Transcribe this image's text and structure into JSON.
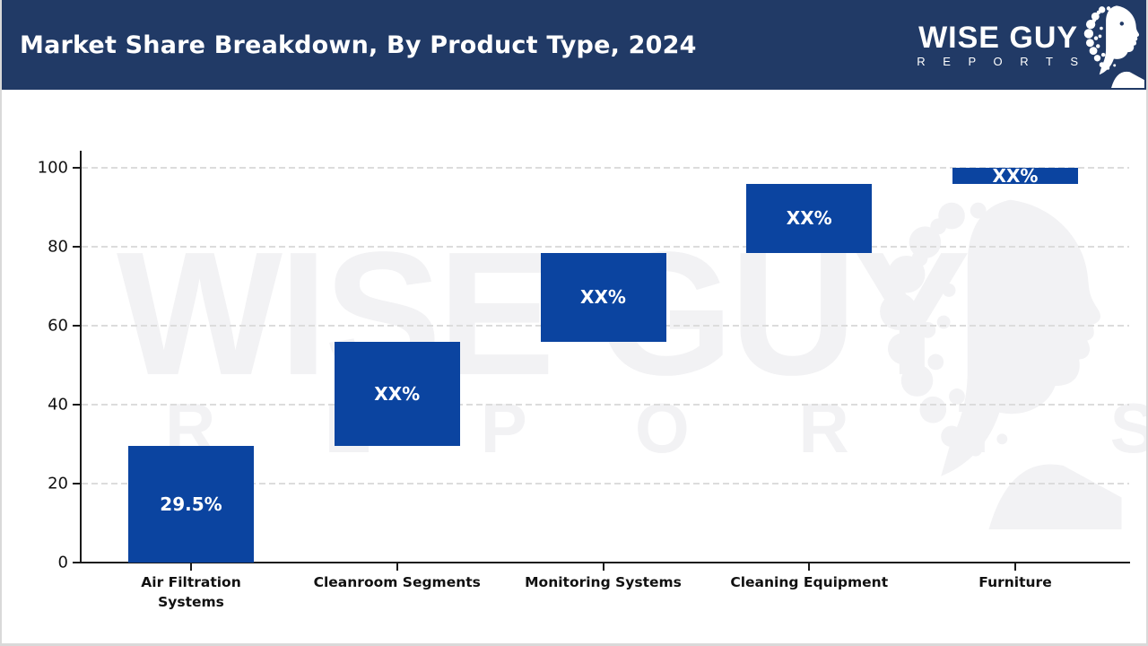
{
  "header": {
    "title": "Market Share Breakdown, By Product Type, 2024",
    "brand": {
      "wordmark": "WISE GUY",
      "sub_wordmark": "R E P O R T S"
    }
  },
  "watermark": {
    "wordmark": "WISE GUY",
    "sub_wordmark": "R E P O R T S"
  },
  "colors": {
    "header_bg": "#213A66",
    "bar": "#0B44A0",
    "bar_label": "#FFFFFF",
    "overflow_label": "#1A1A1A",
    "axis": "#1A1A1A",
    "gridline": "#DCDCDC",
    "watermark": "#F2F2F4",
    "category_label": "#111111"
  },
  "chart_data": {
    "type": "bar",
    "subtype": "waterfall-stepped-market-share",
    "title": "Market Share Breakdown, By Product Type, 2024",
    "xlabel": "",
    "ylabel": "",
    "ylim": [
      0,
      100
    ],
    "yticks": [
      0,
      20,
      40,
      60,
      80,
      100
    ],
    "grid": "horizontal-dashed",
    "legend": "none",
    "categories": [
      "Air Filtration Systems",
      "Cleanroom Segments",
      "Monitoring Systems",
      "Cleaning Equipment",
      "Furniture"
    ],
    "bars": [
      {
        "category": "Air Filtration Systems",
        "category_lines": [
          "Air Filtration",
          "Systems"
        ],
        "start": 0,
        "end": 29.5,
        "label": "29.5%"
      },
      {
        "category": "Cleanroom Segments",
        "category_lines": [
          "Cleanroom Segments"
        ],
        "start": 29.5,
        "end": 56,
        "label": "XX%"
      },
      {
        "category": "Monitoring Systems",
        "category_lines": [
          "Monitoring Systems"
        ],
        "start": 56,
        "end": 78.5,
        "label": "XX%"
      },
      {
        "category": "Cleaning Equipment",
        "category_lines": [
          "Cleaning Equipment"
        ],
        "start": 78.5,
        "end": 96,
        "label": "XX%"
      },
      {
        "category": "Furniture",
        "category_lines": [
          "Furniture"
        ],
        "start": 96,
        "end": 100,
        "label": "XX%"
      }
    ]
  }
}
